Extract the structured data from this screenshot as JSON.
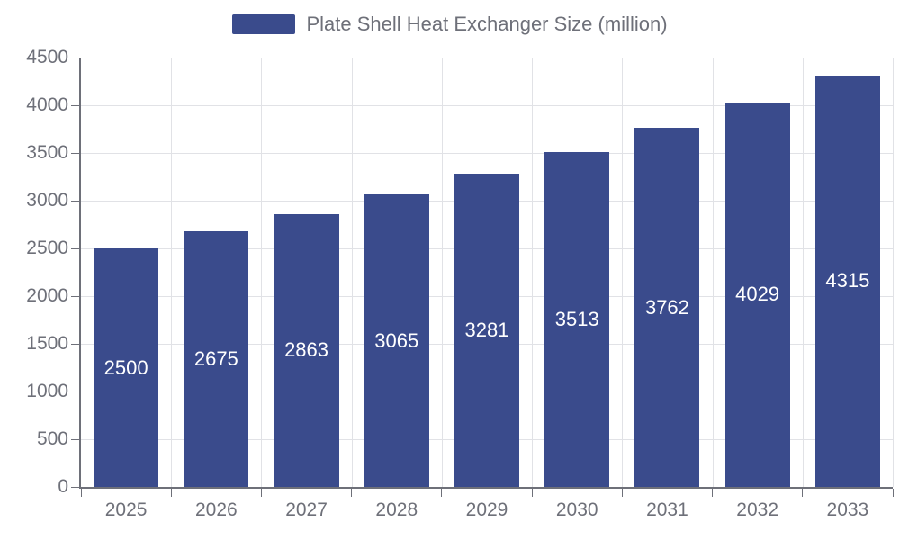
{
  "chart_data": {
    "type": "bar",
    "legend": "Plate Shell Heat Exchanger Size (million)",
    "categories": [
      "2025",
      "2026",
      "2027",
      "2028",
      "2029",
      "2030",
      "2031",
      "2032",
      "2033"
    ],
    "values": [
      2500,
      2675,
      2863,
      3065,
      3281,
      3513,
      3762,
      4029,
      4315
    ],
    "title": "",
    "xlabel": "",
    "ylabel": "",
    "ylim": [
      0,
      4500
    ],
    "ytick_step": 500,
    "ytick_labels": [
      "0",
      "500",
      "1000",
      "1500",
      "2000",
      "2500",
      "3000",
      "3500",
      "4000",
      "4500"
    ],
    "grid": "on",
    "legend_position": "top-center",
    "colors": {
      "bar": "#3A4B8C",
      "axis_text": "#6E7079",
      "grid_line": "#E1E2E6",
      "value_label": "#FFFFFF",
      "background": "#FFFFFF"
    }
  }
}
